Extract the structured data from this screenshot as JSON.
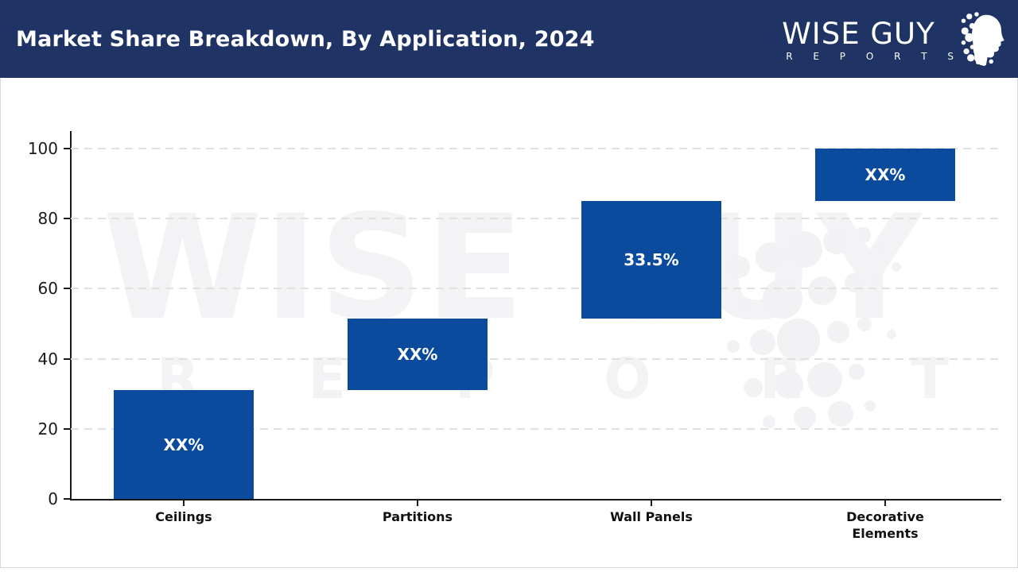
{
  "header": {
    "title": "Market Share Breakdown, By Application, 2024",
    "brand": {
      "wordmark": "WISE GUY",
      "subtext": "R E P O R T S"
    },
    "colors": {
      "background": "#1f3464",
      "text": "#ffffff"
    }
  },
  "watermark": {
    "wordmark": "WISE GUY",
    "subtext": "R E P O R T S"
  },
  "chart_data": {
    "type": "bar",
    "subtype": "floating-waterfall",
    "title": "Market Share Breakdown, By Application, 2024",
    "categories": [
      "Ceilings",
      "Partitions",
      "Wall Panels",
      "Decorative Elements"
    ],
    "bars": [
      {
        "category": "Ceilings",
        "start": 0,
        "end": 31,
        "label": "XX%"
      },
      {
        "category": "Partitions",
        "start": 31,
        "end": 51.5,
        "label": "XX%"
      },
      {
        "category": "Wall Panels",
        "start": 51.5,
        "end": 85,
        "label": "33.5%"
      },
      {
        "category": "Decorative Elements",
        "start": 85,
        "end": 100,
        "label": "XX%"
      }
    ],
    "ylim": [
      0,
      100
    ],
    "yticks": [
      0,
      20,
      40,
      60,
      80,
      100
    ],
    "xlabel": "",
    "ylabel": "",
    "grid": "horizontal-dashed",
    "legend": "none",
    "bar_color": "#0a4b9d",
    "bar_label_color": "#ffffff",
    "gridline_color": "#e1e1e1"
  }
}
